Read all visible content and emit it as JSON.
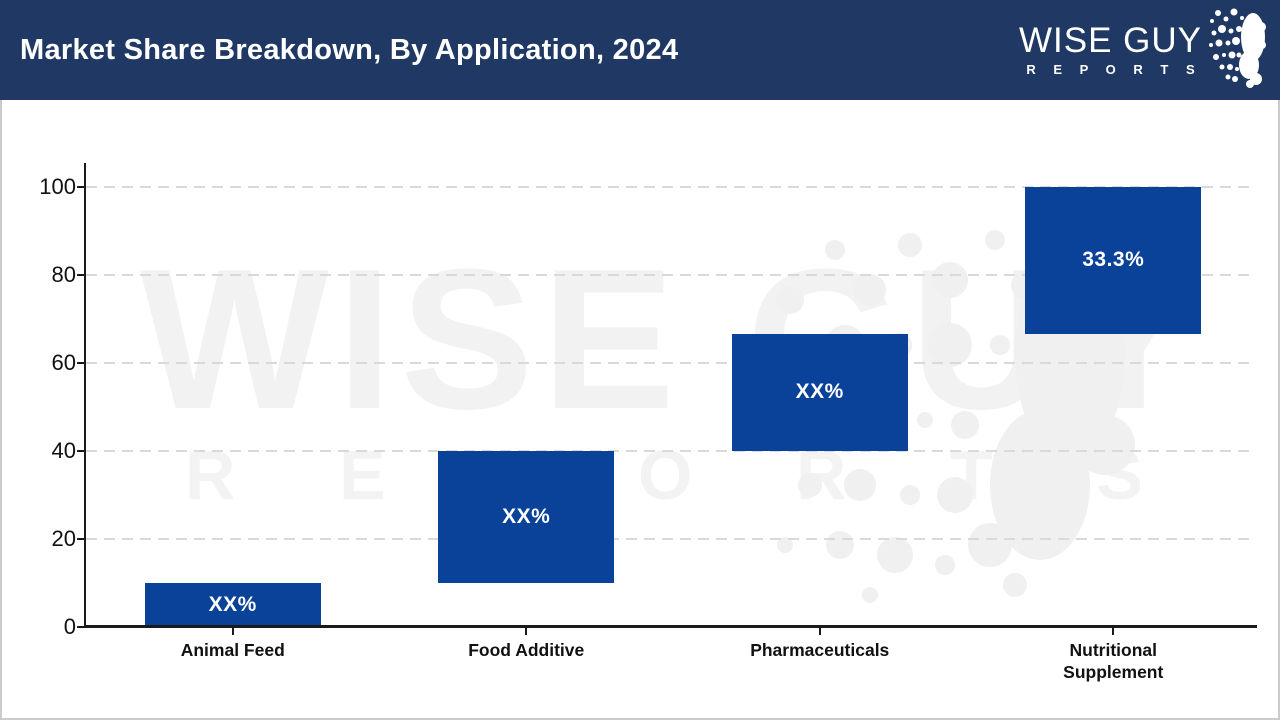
{
  "header": {
    "title": "Market Share Breakdown, By Application, 2024",
    "logo": {
      "wordmark": "WISE GUY",
      "tagline": "R E P O R T S"
    }
  },
  "watermark": {
    "wordmark": "WISE GUY",
    "tagline": "R E P O R T S"
  },
  "chart_data": {
    "type": "bar",
    "subtype": "floating-waterfall",
    "title": "Market Share Breakdown, By Application, 2024",
    "categories": [
      "Animal Feed",
      "Food Additive",
      "Pharmaceuticals",
      "Nutritional Supplement"
    ],
    "segments": [
      {
        "category": "Animal Feed",
        "start": 0,
        "end": 10,
        "value_pct": 10,
        "label": "XX%"
      },
      {
        "category": "Food Additive",
        "start": 10,
        "end": 40,
        "value_pct": 30,
        "label": "XX%"
      },
      {
        "category": "Pharmaceuticals",
        "start": 40,
        "end": 66.7,
        "value_pct": 26.7,
        "label": "XX%"
      },
      {
        "category": "Nutritional Supplement",
        "start": 66.7,
        "end": 100,
        "value_pct": 33.3,
        "label": "33.3%"
      }
    ],
    "xlabel": "",
    "ylabel": "",
    "yticks": [
      0,
      20,
      40,
      60,
      80,
      100
    ],
    "ylim": [
      0,
      105
    ],
    "grid": "horizontal-dashed",
    "legend": "none",
    "bar_color": "#0a429a",
    "bar_label_color": "#ffffff"
  },
  "colors": {
    "header_bg": "#203864",
    "bar": "#0a429a",
    "axis": "#1a1a1a",
    "grid": "#d9d9d9",
    "watermark": "#f2f2f2",
    "page_border": "#cccccc"
  }
}
